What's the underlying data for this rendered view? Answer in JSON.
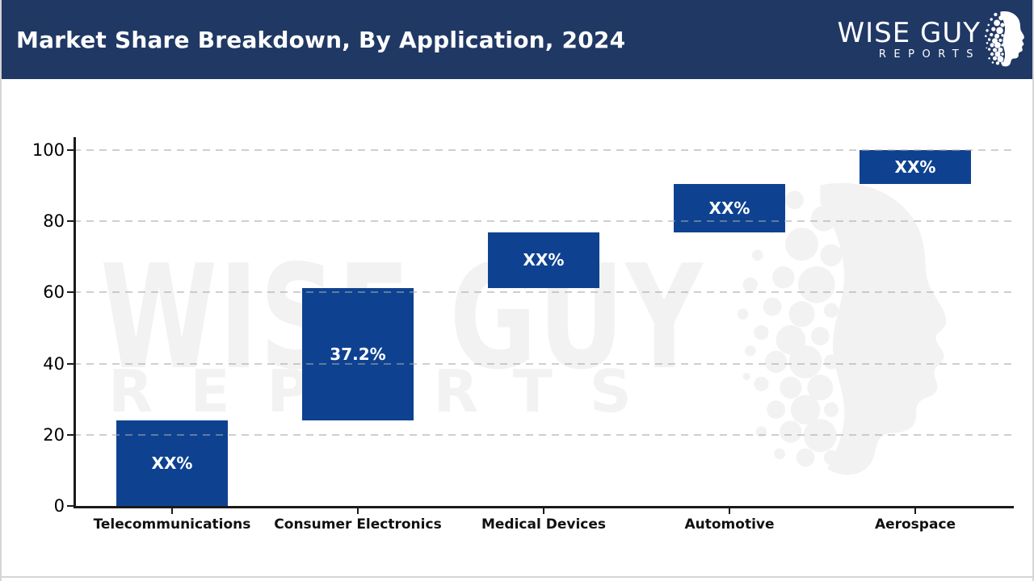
{
  "header": {
    "title": "Market Share Breakdown, By Application, 2024",
    "bg_color": "#203864",
    "logo": {
      "line1": "WISE GUY",
      "line2": "REPORTS"
    }
  },
  "watermark": {
    "line1": "WISE GUY",
    "line2": "REPORTS"
  },
  "chart_data": {
    "type": "bar",
    "subtype": "waterfall",
    "title": "Market Share Breakdown, By Application, 2024",
    "categories": [
      "Telecommunications",
      "Consumer Electronics",
      "Medical Devices",
      "Automotive",
      "Aerospace"
    ],
    "segments": [
      {
        "category": "Telecommunications",
        "start": 0,
        "end": 24,
        "value_label": "XX%"
      },
      {
        "category": "Consumer Electronics",
        "start": 24,
        "end": 61.2,
        "value_label": "37.2%"
      },
      {
        "category": "Medical Devices",
        "start": 61.2,
        "end": 76.9,
        "value_label": "XX%"
      },
      {
        "category": "Automotive",
        "start": 76.9,
        "end": 90.4,
        "value_label": "XX%"
      },
      {
        "category": "Aerospace",
        "start": 90.4,
        "end": 100,
        "value_label": "XX%"
      }
    ],
    "xlabel": "",
    "ylabel": "",
    "yticks": [
      0,
      20,
      40,
      60,
      80,
      100
    ],
    "ylim": [
      0,
      104
    ],
    "grid": {
      "horizontal": true,
      "style": "dashed",
      "color": "#d9d9d9"
    },
    "legend": null,
    "bar_color": "#0E4291",
    "bar_label_color": "#ffffff"
  }
}
